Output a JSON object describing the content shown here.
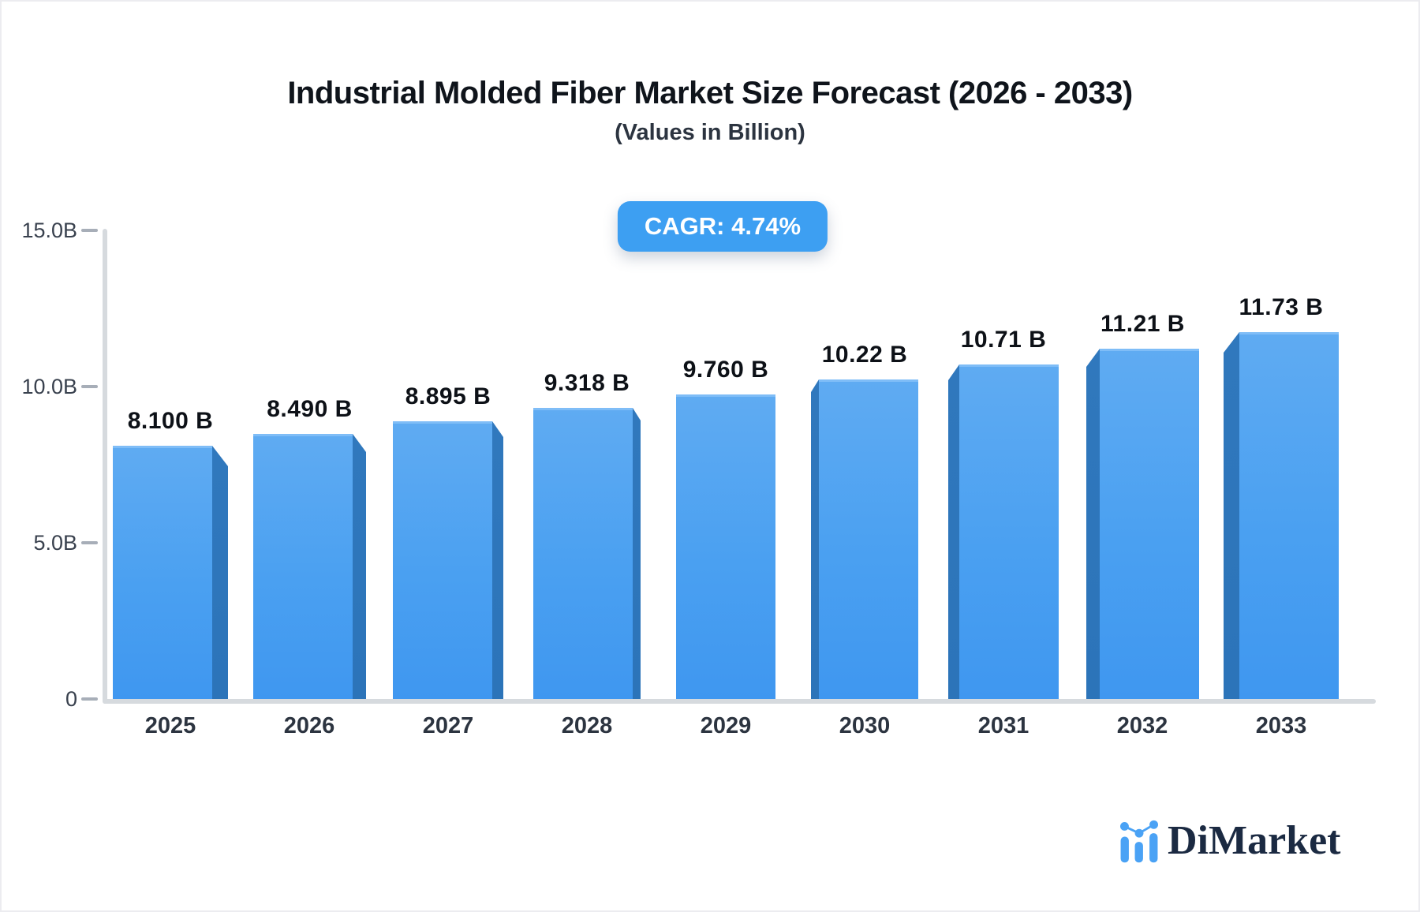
{
  "header": {
    "title": "Industrial Molded Fiber Market Size Forecast (2026 - 2033)",
    "subtitle": "(Values in Billion)",
    "cagr_badge": "CAGR: 4.74%"
  },
  "chart_data": {
    "type": "bar",
    "title": "Industrial Molded Fiber Market Size Forecast (2026 - 2033)",
    "subtitle": "(Values in Billion)",
    "annotation": "CAGR: 4.74%",
    "categories": [
      "2025",
      "2026",
      "2027",
      "2028",
      "2029",
      "2030",
      "2031",
      "2032",
      "2033"
    ],
    "values": [
      8.1,
      8.49,
      8.895,
      9.318,
      9.76,
      10.22,
      10.71,
      11.21,
      11.73
    ],
    "bar_labels": [
      "8.100 B",
      "8.490 B",
      "8.895 B",
      "9.318 B",
      "9.760 B",
      "10.22 B",
      "10.71 B",
      "11.21 B",
      "11.73 B"
    ],
    "unit": "Billion",
    "xlabel": "",
    "ylabel": "",
    "ylim": [
      0,
      15
    ],
    "yticks": [
      {
        "value": 0,
        "label": "0"
      },
      {
        "value": 5,
        "label": "5.0B"
      },
      {
        "value": 10,
        "label": "10.0B"
      },
      {
        "value": 15,
        "label": "15.0B"
      }
    ],
    "grid": "off",
    "legend": "none",
    "colors": {
      "bar_top": "#5fabf2",
      "bar_bottom": "#3f97f0",
      "bar_side": "#2c74b9",
      "bar_highlight": "#7fbdf7",
      "axis": "#d6dade",
      "tick": "#a7aeb8",
      "accent": "#3d9ff2"
    }
  },
  "branding": {
    "logo_text": "DiMarket",
    "logo_icon": "bar-chart-logo-icon",
    "logo_blue": "#4aa2f5",
    "logo_navy": "#1b2a42"
  }
}
